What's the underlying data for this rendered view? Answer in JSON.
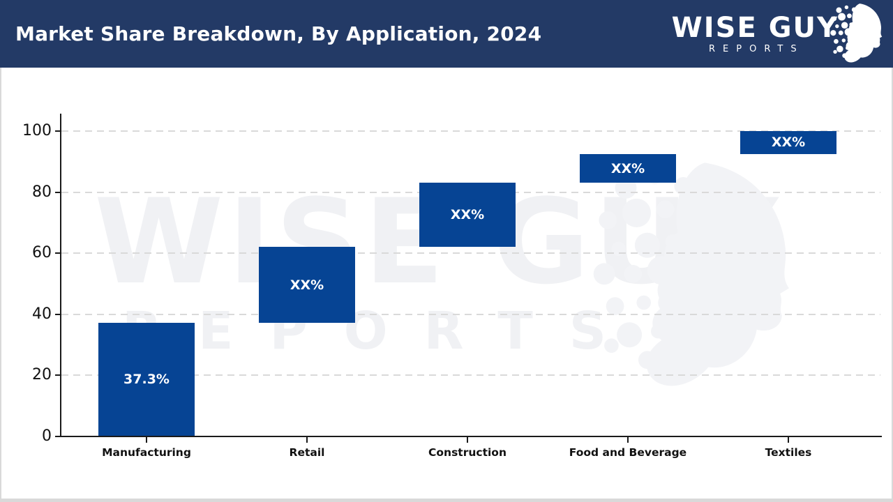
{
  "header": {
    "title": "Market Share Breakdown, By Application, 2024",
    "logo": {
      "line1": "WISE GUY",
      "line2": "REPORTS"
    }
  },
  "watermark": {
    "line1": "WISE GUY",
    "line2": "REPORTS"
  },
  "chart_data": {
    "type": "bar",
    "subtype": "waterfall",
    "title": "Market Share Breakdown, By Application, 2024",
    "categories": [
      "Manufacturing",
      "Retail",
      "Construction",
      "Food and Beverage",
      "Textiles"
    ],
    "segments": [
      {
        "category": "Manufacturing",
        "start": 0,
        "end": 37.3,
        "label": "37.3%"
      },
      {
        "category": "Retail",
        "start": 37.3,
        "end": 62,
        "label": "XX%"
      },
      {
        "category": "Construction",
        "start": 62,
        "end": 83,
        "label": "XX%"
      },
      {
        "category": "Food and Beverage",
        "start": 83,
        "end": 92.5,
        "label": "XX%"
      },
      {
        "category": "Textiles",
        "start": 92.5,
        "end": 100,
        "label": "XX%"
      }
    ],
    "yticks": [
      0,
      20,
      40,
      60,
      80,
      100
    ],
    "ylim": [
      0,
      105
    ],
    "grid": "horizontal-dashed",
    "legend": "none",
    "bar_color": "#064494",
    "bar_label_color": "#ffffff",
    "header_bg_color": "#233a66",
    "grid_color": "#d9d9d9",
    "axis_color": "#1a1a1a"
  }
}
